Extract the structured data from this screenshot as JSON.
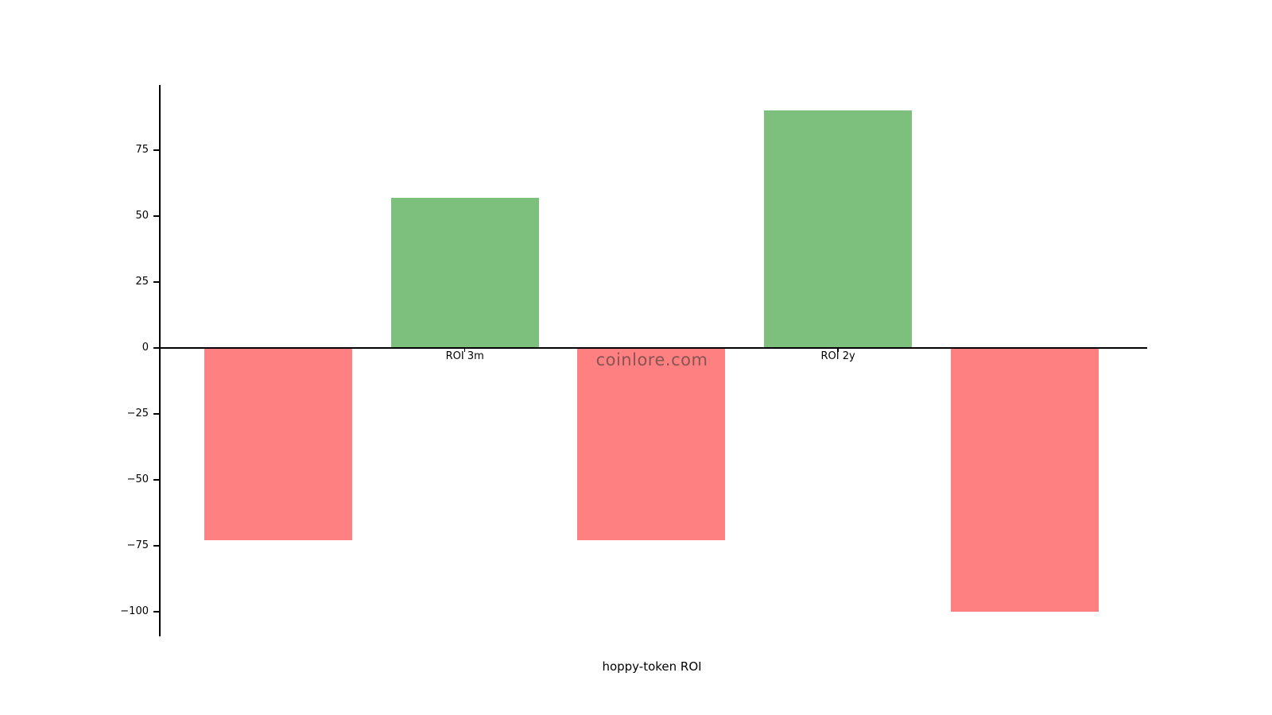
{
  "chart_data": {
    "type": "bar",
    "title": "hoppy-token ROI",
    "xlabel": "hoppy-token ROI",
    "ylabel": "",
    "watermark": "coinlore.com",
    "categories": [
      "",
      "ROI 3m",
      "",
      "ROI 2y",
      ""
    ],
    "values": [
      -73,
      57,
      -73,
      90,
      -100
    ],
    "bar_colors": [
      "#ff8080",
      "#7dc07e",
      "#ff8080",
      "#7dc07e",
      "#ff8080"
    ],
    "y_ticks": [
      75,
      50,
      25,
      0,
      -25,
      -50,
      -75,
      -100
    ],
    "y_tick_labels": [
      "75",
      "50",
      "25",
      "0",
      "−25",
      "−50",
      "−75",
      "−100"
    ],
    "ylim": [
      -109,
      100
    ],
    "grid": false,
    "legend_position": "none",
    "colors": {
      "positive_bar": "#7dc07e",
      "negative_bar": "#ff8080",
      "axis": "#000000",
      "tick_text": "#000000",
      "watermark_text": "rgba(55,55,55,0.6)"
    }
  }
}
